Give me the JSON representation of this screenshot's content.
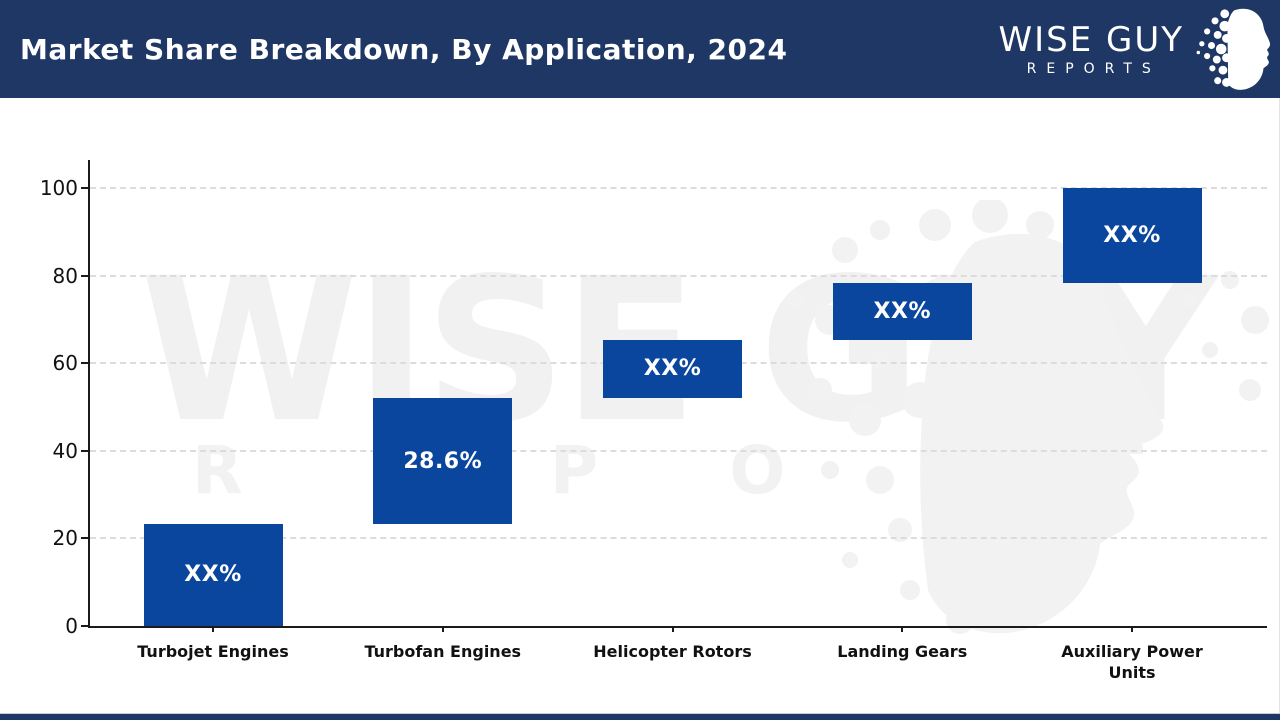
{
  "header": {
    "title": "Market Share Breakdown, By Application, 2024",
    "logo": {
      "line1": "WISE GUY",
      "line2": "REPORTS"
    }
  },
  "watermark": {
    "line1": "WISE GUY",
    "line2": "R E P O R T S"
  },
  "colors": {
    "header_bg": "#1F3765",
    "footer_bg": "#1F3765",
    "bar": "#0A469E",
    "grid": "#dcdcdc",
    "axis": "#1a1a1a",
    "watermark": "#f1f1f1"
  },
  "chart_data": {
    "type": "bar",
    "subtype": "floating-waterfall",
    "title": "Market Share Breakdown, By Application, 2024",
    "xlabel": "",
    "ylabel": "",
    "categories": [
      "Turbojet Engines",
      "Turbofan Engines",
      "Helicopter Rotors",
      "Landing Gears",
      "Auxiliary Power Units"
    ],
    "bars": [
      {
        "category": "Turbojet Engines",
        "start": 0,
        "end": 23.4,
        "label": "XX%"
      },
      {
        "category": "Turbofan Engines",
        "start": 23.4,
        "end": 52.0,
        "label": "28.6%"
      },
      {
        "category": "Helicopter Rotors",
        "start": 52.2,
        "end": 65.3,
        "label": "XX%"
      },
      {
        "category": "Landing Gears",
        "start": 65.4,
        "end": 78.4,
        "label": "XX%"
      },
      {
        "category": "Auxiliary Power Units",
        "start": 78.4,
        "end": 100.0,
        "label": "XX%"
      }
    ],
    "yticks": [
      0,
      20,
      40,
      60,
      80,
      100
    ],
    "ylim": [
      0,
      106.5
    ],
    "grid": "horizontal-dashed",
    "legend": "none"
  }
}
